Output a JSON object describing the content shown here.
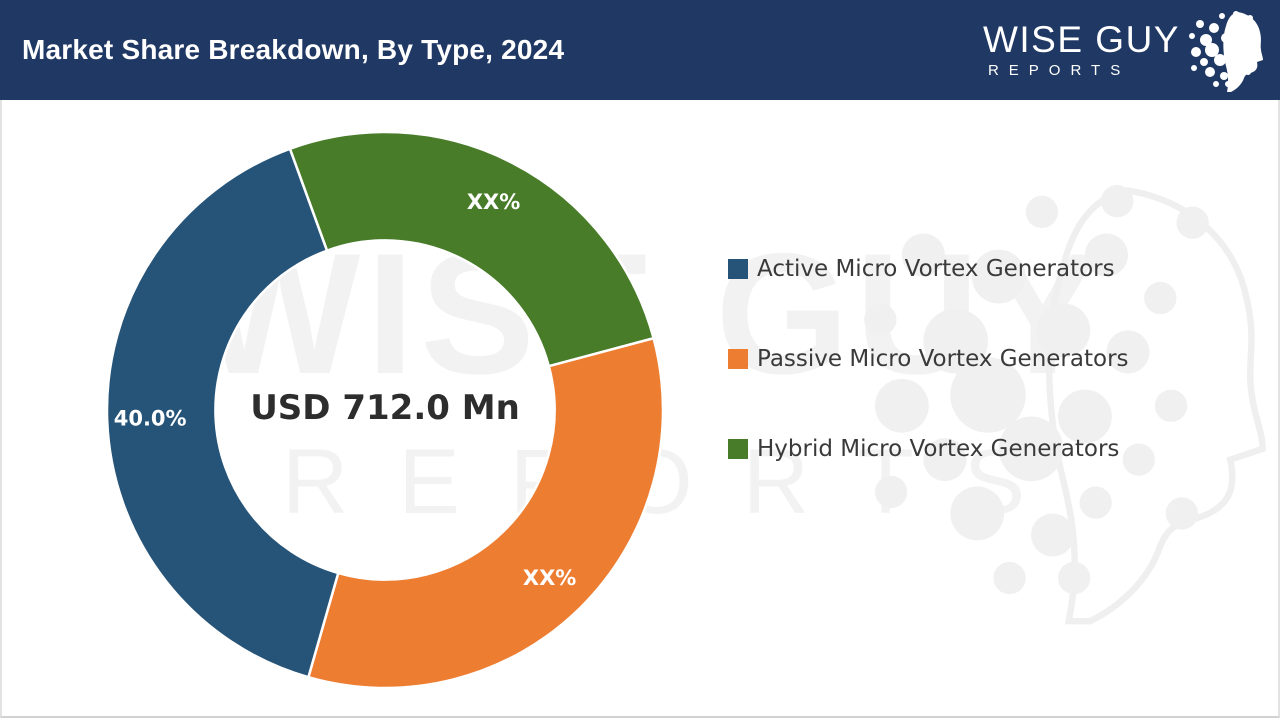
{
  "header": {
    "title": "Market Share Breakdown, By Type, 2024",
    "bg_color": "#203864",
    "logo": {
      "line1": "WISE GUY",
      "line2": "REPORTS"
    }
  },
  "chart_data": {
    "type": "donut",
    "title": "Market Share Breakdown, By Type, 2024",
    "center_label": "USD 712.0 Mn",
    "legend_position": "right",
    "start_angle_deg": -20,
    "inner_radius_ratio": 0.61,
    "series": [
      {
        "name": "Active Micro Vortex Generators",
        "value": 40.0,
        "label": "40.0%",
        "color": "#265478"
      },
      {
        "name": "Passive Micro Vortex Generators",
        "value": 33.6,
        "label": "XX%",
        "color": "#ed7d31"
      },
      {
        "name": "Hybrid Micro Vortex Generators",
        "value": 26.4,
        "label": "XX%",
        "color": "#487c29"
      }
    ],
    "draw_order": [
      2,
      1,
      0
    ]
  }
}
